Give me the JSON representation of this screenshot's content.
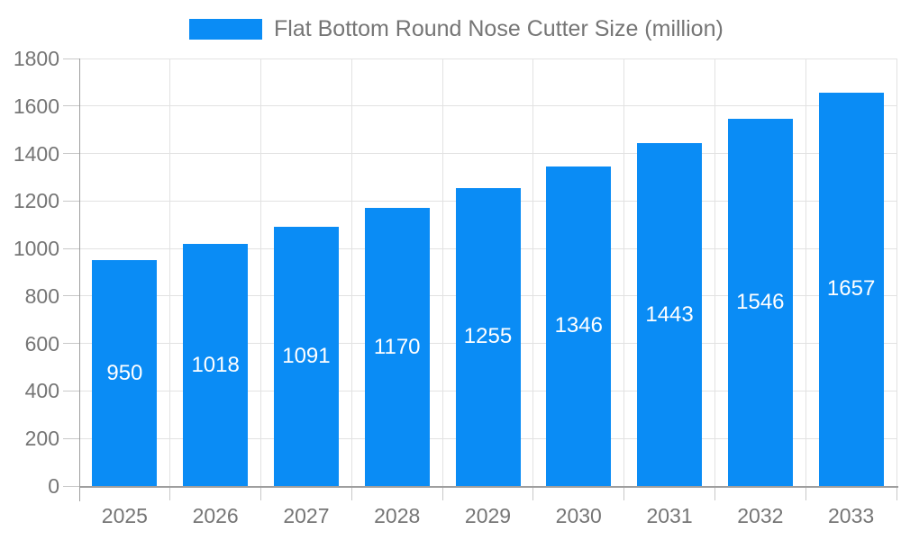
{
  "chart_data": {
    "type": "bar",
    "title": "Flat Bottom Round Nose Cutter Size (million)",
    "categories": [
      "2025",
      "2026",
      "2027",
      "2028",
      "2029",
      "2030",
      "2031",
      "2032",
      "2033"
    ],
    "values": [
      950,
      1018,
      1091,
      1170,
      1255,
      1346,
      1443,
      1546,
      1657
    ],
    "xlabel": "",
    "ylabel": "",
    "ylim": [
      0,
      1800
    ],
    "ytick_step": 200,
    "yticks": [
      0,
      200,
      400,
      600,
      800,
      1000,
      1200,
      1400,
      1600,
      1800
    ],
    "grid": true,
    "legend_position": "top",
    "bar_labels_inside": true,
    "colors": {
      "bar": "#0A8CF5",
      "bar_label": "#FFFFFF",
      "axis_text": "#757575",
      "legend_text": "#757575",
      "grid": "#E2E2E2",
      "axis_line": "#9E9E9E",
      "tick": "#C8C8C8",
      "background": "#FFFFFF"
    }
  }
}
